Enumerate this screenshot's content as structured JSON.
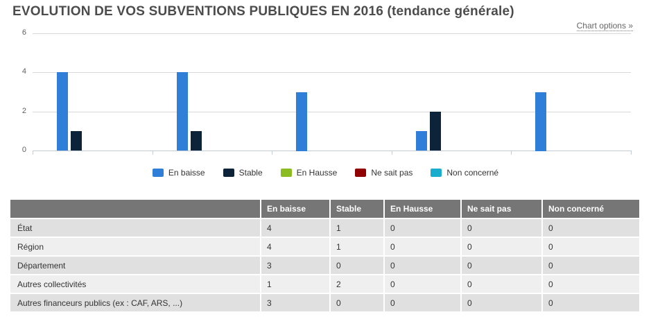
{
  "page": {
    "title": "EVOLUTION DE VOS SUBVENTIONS PUBLIQUES EN 2016 (tendance générale)",
    "chart_options_label": "Chart options »"
  },
  "chart_data": {
    "type": "bar",
    "title": "EVOLUTION DE VOS SUBVENTIONS PUBLIQUES EN 2016 (tendance générale)",
    "categories": [
      "État",
      "Région",
      "Département",
      "Autres collectivités",
      "Autres financeurs publics (ex : CAF, ARS, ...)"
    ],
    "series": [
      {
        "name": "En baisse",
        "color": "#2f7ed8",
        "values": [
          4,
          4,
          3,
          1,
          3
        ]
      },
      {
        "name": "Stable",
        "color": "#0d233a",
        "values": [
          1,
          1,
          0,
          2,
          0
        ]
      },
      {
        "name": "En Hausse",
        "color": "#8bbc21",
        "values": [
          0,
          0,
          0,
          0,
          0
        ]
      },
      {
        "name": "Ne sait pas",
        "color": "#910000",
        "values": [
          0,
          0,
          0,
          0,
          0
        ]
      },
      {
        "name": "Non concerné",
        "color": "#1aadce",
        "values": [
          0,
          0,
          0,
          0,
          0
        ]
      }
    ],
    "ylim": [
      0,
      6
    ],
    "yticks": [
      0,
      2,
      4,
      6
    ],
    "xlabel": "",
    "ylabel": "",
    "grid": true,
    "legend_position": "bottom",
    "x_tick_labels_visible": false
  },
  "table": {
    "headers": [
      "",
      "En baisse",
      "Stable",
      "En Hausse",
      "Ne sait pas",
      "Non concerné"
    ],
    "rows": [
      {
        "label": "État",
        "values": [
          "4",
          "1",
          "0",
          "0",
          "0"
        ]
      },
      {
        "label": "Région",
        "values": [
          "4",
          "1",
          "0",
          "0",
          "0"
        ]
      },
      {
        "label": "Département",
        "values": [
          "3",
          "0",
          "0",
          "0",
          "0"
        ]
      },
      {
        "label": "Autres collectivités",
        "values": [
          "1",
          "2",
          "0",
          "0",
          "0"
        ]
      },
      {
        "label": "Autres financeurs publics (ex : CAF, ARS, ...)",
        "values": [
          "3",
          "0",
          "0",
          "0",
          "0"
        ]
      }
    ]
  },
  "colors": {
    "title_text": "#4c4c4c",
    "gridline": "#d8d8d8",
    "axis_line": "#c3cbd6",
    "table_header_bg": "#767676",
    "table_row_odd_bg": "#e0e0e0",
    "table_row_even_bg": "#efefef"
  }
}
